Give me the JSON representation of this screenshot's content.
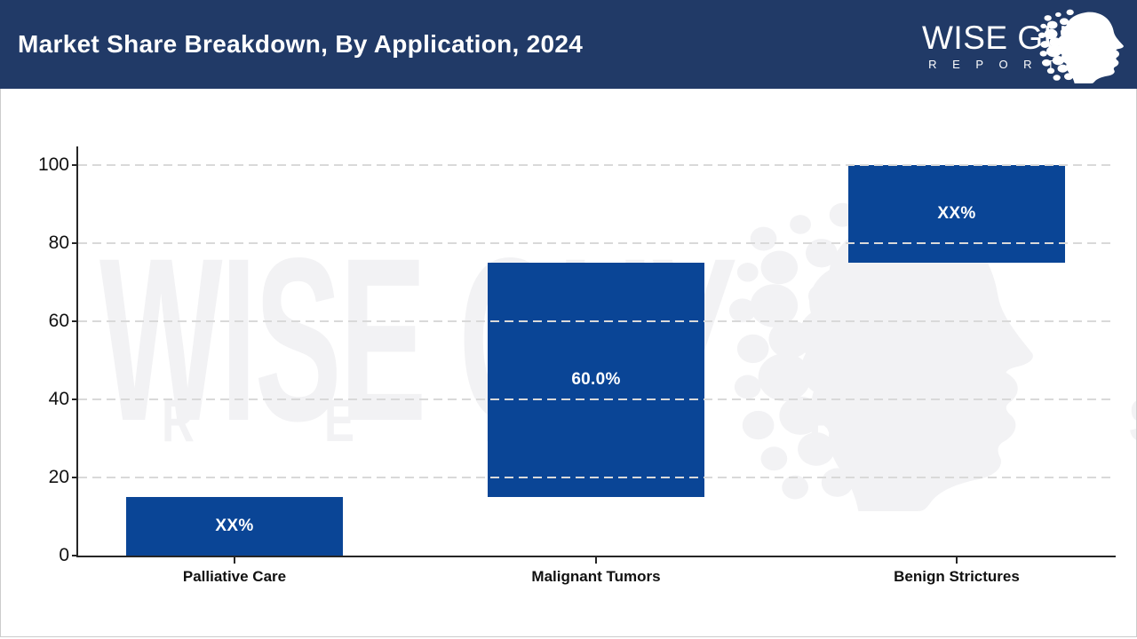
{
  "header": {
    "title": "Market Share Breakdown, By Application, 2024",
    "logo": {
      "wordmark": "WISE GUY",
      "subtext": "R E P O R T S"
    }
  },
  "watermark": {
    "wordmark": "WISE GUY",
    "subtext": "R E P O R T S"
  },
  "chart_data": {
    "type": "bar",
    "variant": "floating-segment-bars",
    "title": "Market Share Breakdown, By Application, 2024",
    "categories": [
      "Palliative Care",
      "Malignant Tumors",
      "Benign Strictures"
    ],
    "segments": [
      {
        "category": "Palliative Care",
        "start": 0,
        "end": 15,
        "label": "XX%"
      },
      {
        "category": "Malignant Tumors",
        "start": 15,
        "end": 75,
        "label": "60.0%"
      },
      {
        "category": "Benign Strictures",
        "start": 75,
        "end": 100,
        "label": "XX%"
      }
    ],
    "xlabel": "",
    "ylabel": "",
    "ylim": [
      0,
      100
    ],
    "yticks": [
      0,
      20,
      40,
      60,
      80,
      100
    ],
    "grid": "horizontal dashed gridlines drawn above bars",
    "legend": "none",
    "colors": {
      "bar": "#0a4596",
      "header_bg": "#213a67",
      "grid": "#d9d9d9",
      "axis": "#262626",
      "watermark": "#f2f2f4"
    }
  }
}
